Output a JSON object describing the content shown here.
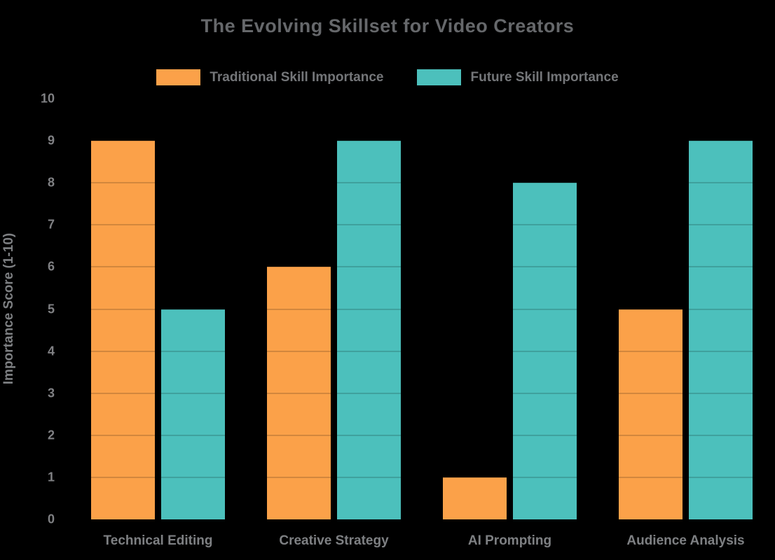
{
  "chart_data": {
    "type": "bar",
    "title": "The Evolving Skillset for Video Creators",
    "categories": [
      "Technical Editing",
      "Creative Strategy",
      "AI Prompting",
      "Audience Analysis"
    ],
    "series": [
      {
        "name": "Traditional Skill Importance",
        "color": "#FBA149",
        "values": [
          9,
          6,
          1,
          5
        ]
      },
      {
        "name": "Future Skill Importance",
        "color": "#4CC0BC",
        "values": [
          5,
          9,
          8,
          9
        ]
      }
    ],
    "xlabel": "",
    "ylabel": "Importance Score (1-10)",
    "ylim": [
      0,
      10
    ],
    "yticks": [
      0,
      1,
      2,
      3,
      4,
      5,
      6,
      7,
      8,
      9,
      10
    ],
    "grid": true,
    "grid_color": "rgba(0,0,0,0.16)",
    "legend_position": "top",
    "background": "#000000",
    "title_color": "#66686b",
    "text_color": "#7e8083"
  }
}
